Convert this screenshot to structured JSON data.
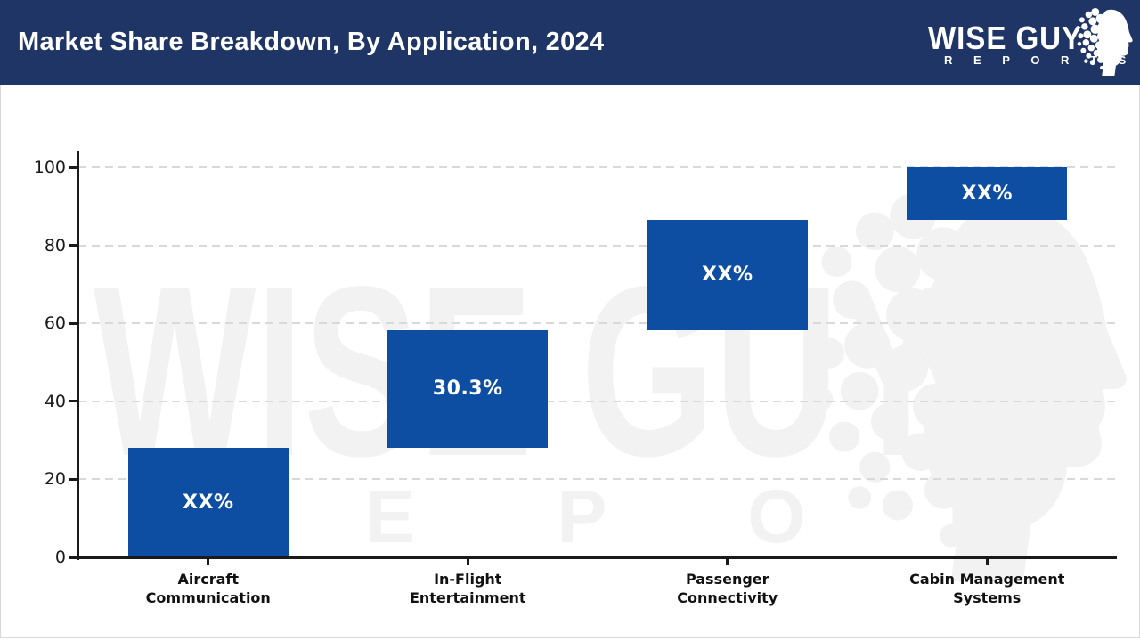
{
  "header": {
    "title": "Market Share Breakdown, By Application, 2024",
    "logo": {
      "line1": "WISE GUY",
      "line2": "REPORTS"
    }
  },
  "watermark": {
    "line1": "WISE GUY",
    "line2": "REPORTS"
  },
  "colors": {
    "header_bg": "#1e3565",
    "bar_blue": "#0d4da2",
    "gridline": "#d9d9d9",
    "axis": "#1a1a1a",
    "bar_label": "#ffffff",
    "watermark": "#f2f2f2"
  },
  "chart_data": {
    "type": "bar",
    "subtype": "waterfall",
    "title": "Market Share Breakdown, By Application, 2024",
    "categories": [
      [
        "Aircraft",
        "Communication"
      ],
      [
        "In-Flight",
        "Entertainment"
      ],
      [
        "Passenger",
        "Connectivity"
      ],
      [
        "Cabin Management",
        "Systems"
      ]
    ],
    "segments": [
      {
        "category": "Aircraft Communication",
        "start": 0,
        "end": 28.0,
        "label": "XX%"
      },
      {
        "category": "In-Flight Entertainment",
        "start": 28.0,
        "end": 58.3,
        "label": "30.3%",
        "value": 30.3
      },
      {
        "category": "Passenger Connectivity",
        "start": 58.3,
        "end": 86.5,
        "label": "XX%"
      },
      {
        "category": "Cabin Management Systems",
        "start": 86.5,
        "end": 100,
        "label": "XX%"
      }
    ],
    "yticks": [
      0,
      20,
      40,
      60,
      80,
      100
    ],
    "ylim": [
      0,
      104
    ],
    "xlabel": "",
    "ylabel": "",
    "grid": "horizontal-dashed",
    "legend": "none",
    "bar_color": "#0d4da2"
  }
}
